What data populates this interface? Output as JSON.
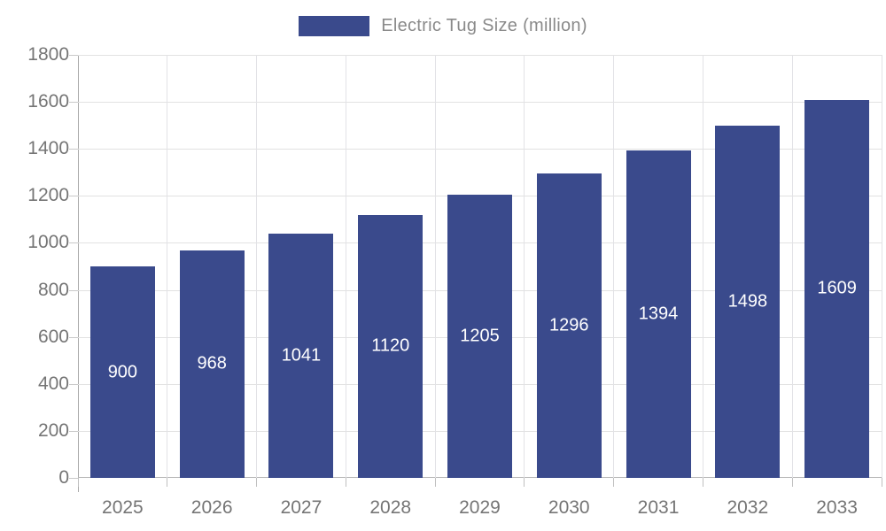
{
  "legend": {
    "label": "Electric Tug Size (million)"
  },
  "chart_data": {
    "type": "bar",
    "title": "",
    "xlabel": "",
    "ylabel": "",
    "categories": [
      "2025",
      "2026",
      "2027",
      "2028",
      "2029",
      "2030",
      "2031",
      "2032",
      "2033"
    ],
    "series": [
      {
        "name": "Electric Tug Size (million)",
        "values": [
          900,
          968,
          1041,
          1120,
          1205,
          1296,
          1394,
          1498,
          1609
        ]
      }
    ],
    "ylim": [
      0,
      1800
    ],
    "ytick_step": 200,
    "ytick_labels": [
      "0",
      "200",
      "400",
      "600",
      "800",
      "1000",
      "1200",
      "1400",
      "1600",
      "1800"
    ],
    "grid": true,
    "legend_position": "top-center",
    "bar_color": "#3A4A8C",
    "bar_label_color": "#FFFFFF",
    "axis_text_color": "#757575",
    "grid_color": "#E2E2E2",
    "axis_line_color": "#A9A9A9"
  }
}
